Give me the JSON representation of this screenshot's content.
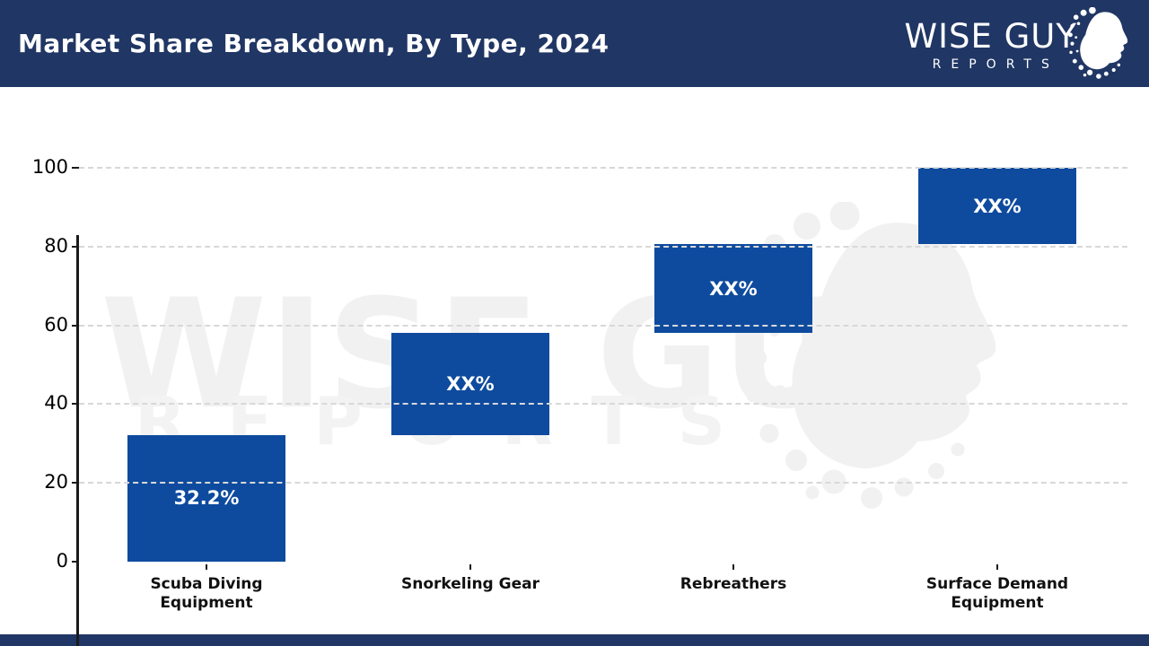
{
  "header": {
    "title": "Market Share Breakdown, By Type, 2024"
  },
  "logo": {
    "line1": "WISE GUY",
    "line2": "REPORTS"
  },
  "watermark": {
    "line1": "WISE GUY",
    "line2": "REPORTS"
  },
  "colors": {
    "header_bg": "#203664",
    "footer_bg": "#203664",
    "bar": "#0e4b9e",
    "grid": "#d8d8d8",
    "watermark": "#f1f1f1"
  },
  "chart_data": {
    "type": "bar",
    "subtype": "waterfall",
    "title": "Market Share Breakdown, By Type, 2024",
    "categories": [
      "Scuba Diving\nEquipment",
      "Snorkeling Gear",
      "Rebreathers",
      "Surface Demand\nEquipment"
    ],
    "bars": [
      {
        "category": "Scuba Diving Equipment",
        "start": 0,
        "end": 32.2,
        "label": "32.2%"
      },
      {
        "category": "Snorkeling Gear",
        "start": 32.2,
        "end": 58.1,
        "label": "XX%"
      },
      {
        "category": "Rebreathers",
        "start": 58.1,
        "end": 80.6,
        "label": "XX%"
      },
      {
        "category": "Surface Demand Equipment",
        "start": 80.6,
        "end": 100,
        "label": "XX%"
      }
    ],
    "yticks": [
      0,
      20,
      40,
      60,
      80,
      100
    ],
    "ylim": [
      0,
      105
    ],
    "xlabel": "",
    "ylabel": "",
    "grid": "horizontal-dashed",
    "legend": "none",
    "bar_color": "#0e4b9e",
    "bar_label_color": "#ffffff"
  }
}
